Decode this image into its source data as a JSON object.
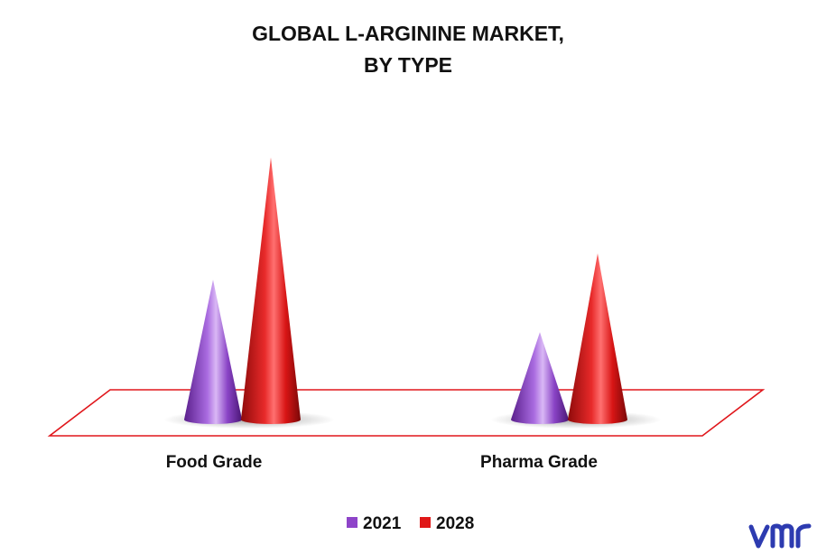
{
  "chart_data": {
    "type": "bar",
    "title": [
      "GLOBAL L-ARGININE MARKET,",
      "BY TYPE"
    ],
    "categories": [
      "Food Grade",
      "Pharma Grade"
    ],
    "series": [
      {
        "name": "2021",
        "values": [
          1.6,
          1.0
        ],
        "color": "#8e44c9"
      },
      {
        "name": "2028",
        "values": [
          3.0,
          1.9
        ],
        "color": "#e01818"
      }
    ],
    "ylim": [
      0,
      3.2
    ],
    "legend_position": "bottom",
    "grid": false,
    "style": "3d-cone"
  },
  "colors": {
    "floor_outline": "#e0161b",
    "logo": "#2d3bb0"
  },
  "logo_icon": "vmr-logo"
}
